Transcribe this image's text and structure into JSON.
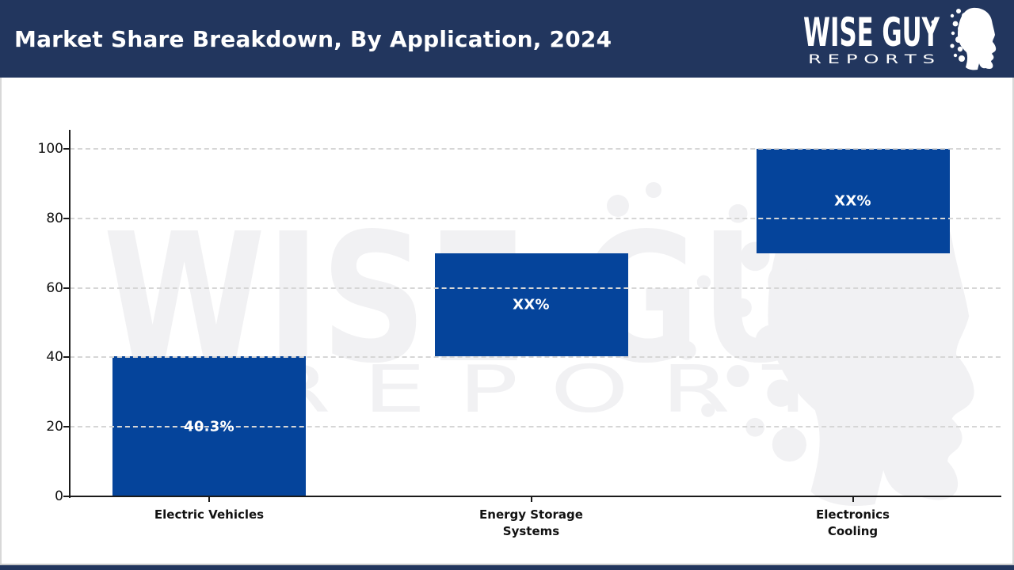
{
  "header": {
    "title": "Market Share Breakdown, By Application, 2024",
    "logo": {
      "line1": "WISE GUY",
      "line2": "R E P O R T S"
    }
  },
  "watermark": {
    "line1": "WISE GUY",
    "line2": "R E P O R T S"
  },
  "colors": {
    "header_bg": "#22365E",
    "bar_blue": "#05449B",
    "gridline": "#d6d6d6",
    "axis": "#1a1a1a",
    "watermark_gray": "#f1f1f3",
    "bar_label_text": "#ffffff"
  },
  "chart_data": {
    "type": "bar",
    "subtype": "waterfall",
    "title": "Market Share Breakdown, By Application, 2024",
    "categories": [
      "Electric Vehicles",
      "Energy Storage\nSystems",
      "Electronics\nCooling"
    ],
    "segments": [
      {
        "category": "Electric Vehicles",
        "start": 0,
        "end": 40.3,
        "label": "40.3%"
      },
      {
        "category": "Energy Storage Systems",
        "start": 40.3,
        "end": 70,
        "label": "XX%"
      },
      {
        "category": "Electronics Cooling",
        "start": 70,
        "end": 100,
        "label": "XX%"
      }
    ],
    "xlabel": "",
    "ylabel": "",
    "ylim": [
      0,
      100
    ],
    "yticks": [
      0,
      20,
      40,
      60,
      80,
      100
    ],
    "grid": "horizontal dashed, drawn over bars",
    "legend": "none",
    "bar_color": "#05449B",
    "value_label_color": "#ffffff"
  }
}
